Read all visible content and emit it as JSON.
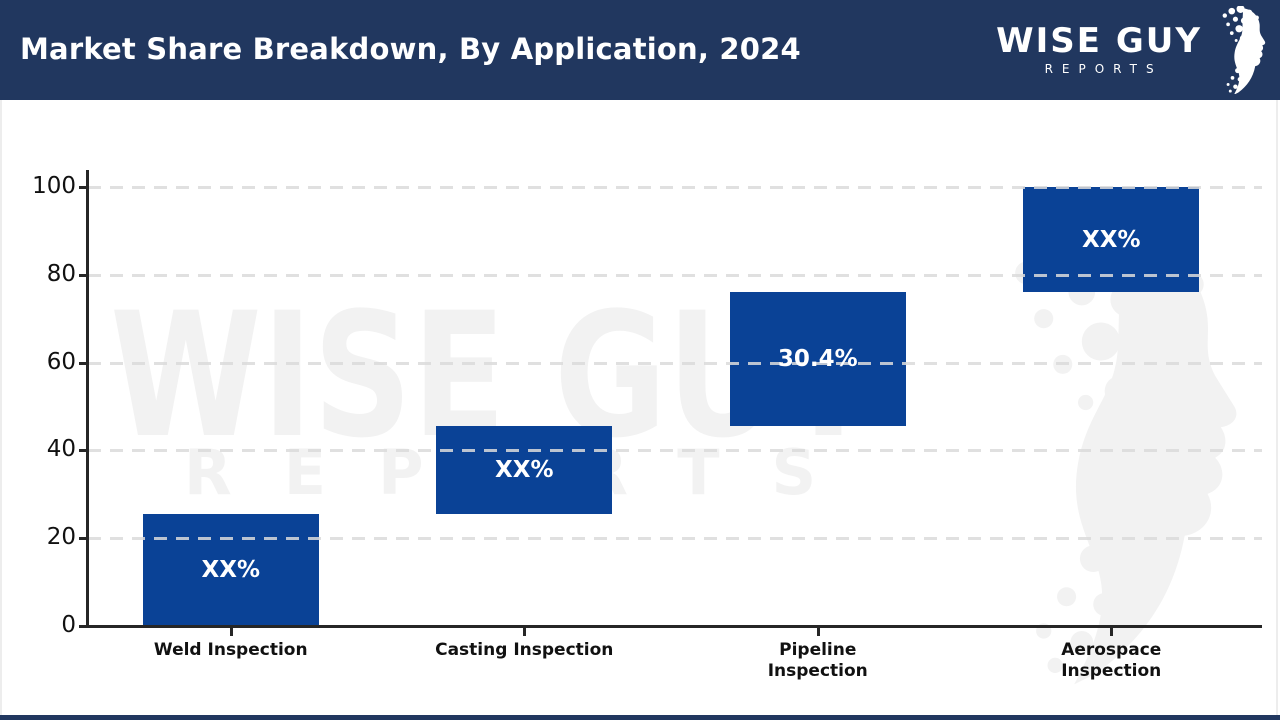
{
  "header": {
    "title": "Market Share Breakdown, By Application, 2024",
    "logo": {
      "name": "WISE GUY",
      "sub": "REPORTS"
    }
  },
  "watermark": {
    "text": "WISE GUY",
    "sub": "REPORTS"
  },
  "chart_data": {
    "type": "bar",
    "subtype": "floating-waterfall",
    "title": "Market Share Breakdown, By Application, 2024",
    "categories": [
      "Weld Inspection",
      "Casting Inspection",
      "Pipeline Inspection",
      "Aerospace Inspection"
    ],
    "category_label_lines": [
      [
        "Weld Inspection"
      ],
      [
        "Casting Inspection"
      ],
      [
        "Pipeline",
        "Inspection"
      ],
      [
        "Aerospace",
        "Inspection"
      ]
    ],
    "series": [
      {
        "name": "Market Share (%)",
        "segments": [
          {
            "category": "Weld Inspection",
            "start": 0,
            "end": 25.4,
            "label": "XX%"
          },
          {
            "category": "Casting Inspection",
            "start": 25.4,
            "end": 45.6,
            "label": "XX%"
          },
          {
            "category": "Pipeline Inspection",
            "start": 45.6,
            "end": 76.0,
            "label": "30.4%"
          },
          {
            "category": "Aerospace Inspection",
            "start": 76.0,
            "end": 100,
            "label": "XX%"
          }
        ]
      }
    ],
    "ylim": [
      0,
      100
    ],
    "yticks": [
      0,
      20,
      40,
      60,
      80,
      100
    ],
    "grid": "horizontal-dashed",
    "legend": "none",
    "bar_color": "#0a4296",
    "bar_label_color": "#ffffff",
    "axis_color": "#262626",
    "grid_color": "#dbdbdb"
  },
  "colors": {
    "header_bg": "#21375f",
    "watermark": "#f2f2f2",
    "background": "#ffffff"
  }
}
